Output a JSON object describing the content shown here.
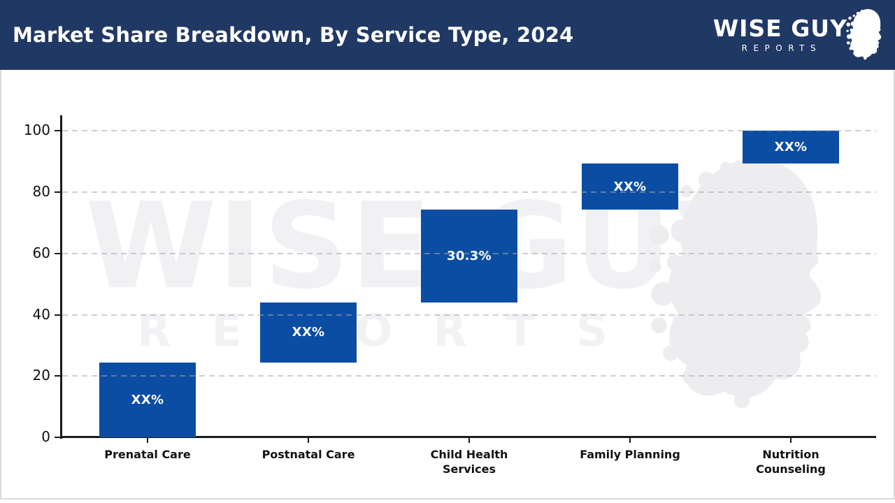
{
  "header": {
    "title": "Market Share Breakdown, By Service Type, 2024",
    "logo": {
      "brand_line1": "WISE GUY",
      "brand_line2": "REPORTS",
      "head_icon": "dotted-face-profile-icon"
    },
    "bg_color": "#203864"
  },
  "watermark": {
    "line1": "WISE GUY",
    "line2": "REPORTS",
    "face_icon": "dotted-face-profile-icon"
  },
  "chart_data": {
    "type": "bar",
    "variant": "floating-waterfall",
    "title": "Market Share Breakdown, By Service Type, 2024",
    "categories": [
      "Prenatal Care",
      "Postnatal Care",
      "Child Health Services",
      "Family Planning",
      "Nutrition Counseling"
    ],
    "series": [
      {
        "name": "Market Share",
        "segments": [
          {
            "category": "Prenatal Care",
            "start": 0,
            "end": 24.4,
            "label": "XX%"
          },
          {
            "category": "Postnatal Care",
            "start": 24.4,
            "end": 44.1,
            "label": "XX%"
          },
          {
            "category": "Child Health Services",
            "start": 44.1,
            "end": 74.4,
            "label": "30.3%",
            "value": 30.3
          },
          {
            "category": "Family Planning",
            "start": 74.4,
            "end": 89.3,
            "label": "XX%"
          },
          {
            "category": "Nutrition Counseling",
            "start": 89.3,
            "end": 100,
            "label": "XX%"
          }
        ]
      }
    ],
    "xlabel": "",
    "ylabel": "",
    "ylim": [
      0,
      100
    ],
    "y_ticks": [
      0,
      20,
      40,
      60,
      80,
      100
    ],
    "grid": "horizontal-dashed",
    "legend": "none",
    "colors": {
      "bar": "#0B4DA2",
      "bar_label": "#FFFFFF",
      "axis": "#1A1A1A",
      "gridline": "#D9D9D9",
      "header_bg": "#203864",
      "watermark": "#F1F1F4"
    }
  }
}
